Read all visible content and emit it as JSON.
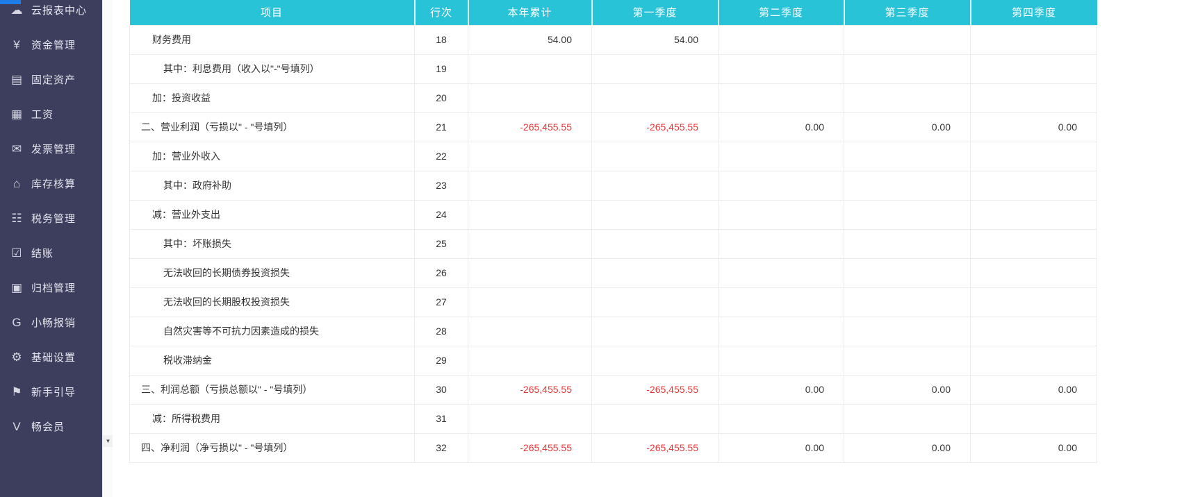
{
  "colors": {
    "sidebar-bg": "#3d3e5d",
    "sidebar-text": "#e3e4ee",
    "header-bg": "#29c3d8",
    "negative": "#e63838",
    "accent-blue": "#1e7ce8"
  },
  "sidebar": {
    "scroll_down_arrow": "▼",
    "items": [
      {
        "name": "cloud-report-center",
        "icon": "cloud-report-icon",
        "glyph": "☁",
        "label": "云报表中心"
      },
      {
        "name": "funds-management",
        "icon": "funds-icon",
        "glyph": "¥",
        "label": "资金管理"
      },
      {
        "name": "fixed-assets",
        "icon": "fixed-assets-icon",
        "glyph": "▤",
        "label": "固定资产"
      },
      {
        "name": "payroll",
        "icon": "payroll-icon",
        "glyph": "▦",
        "label": "工资"
      },
      {
        "name": "invoice-management",
        "icon": "invoice-icon",
        "glyph": "✉",
        "label": "发票管理"
      },
      {
        "name": "inventory-accounting",
        "icon": "inventory-icon",
        "glyph": "⌂",
        "label": "库存核算"
      },
      {
        "name": "tax-management",
        "icon": "tax-icon",
        "glyph": "☷",
        "label": "税务管理"
      },
      {
        "name": "closing",
        "icon": "closing-icon",
        "glyph": "☑",
        "label": "结账"
      },
      {
        "name": "archive-management",
        "icon": "archive-icon",
        "glyph": "▣",
        "label": "归档管理"
      },
      {
        "name": "reimbursement",
        "icon": "reimburse-icon",
        "glyph": "G",
        "label": "小畅报销"
      },
      {
        "name": "basic-settings",
        "icon": "settings-icon",
        "glyph": "⚙",
        "label": "基础设置"
      },
      {
        "name": "newbie-guide",
        "icon": "guide-icon",
        "glyph": "⚑",
        "label": "新手引导"
      },
      {
        "name": "member",
        "icon": "member-icon",
        "glyph": "V",
        "label": "畅会员"
      }
    ]
  },
  "table": {
    "headers": [
      "项目",
      "行次",
      "本年累计",
      "第一季度",
      "第二季度",
      "第三季度",
      "第四季度"
    ],
    "rows": [
      {
        "item": "财务费用",
        "indent": 1,
        "line": "18",
        "ytd": "54.00",
        "q1": "54.00",
        "q2": "",
        "q3": "",
        "q4": ""
      },
      {
        "item": "其中：利息费用（收入以\"-\"号填列）",
        "indent": 2,
        "line": "19",
        "ytd": "",
        "q1": "",
        "q2": "",
        "q3": "",
        "q4": ""
      },
      {
        "item": "加：投资收益",
        "indent": 1,
        "line": "20",
        "ytd": "",
        "q1": "",
        "q2": "",
        "q3": "",
        "q4": ""
      },
      {
        "item": "二、营业利润（亏损以\" - \"号填列）",
        "indent": 0,
        "line": "21",
        "ytd": "-265,455.55",
        "q1": "-265,455.55",
        "q2": "0.00",
        "q3": "0.00",
        "q4": "0.00"
      },
      {
        "item": "加：营业外收入",
        "indent": 1,
        "line": "22",
        "ytd": "",
        "q1": "",
        "q2": "",
        "q3": "",
        "q4": ""
      },
      {
        "item": "其中：政府补助",
        "indent": 2,
        "line": "23",
        "ytd": "",
        "q1": "",
        "q2": "",
        "q3": "",
        "q4": ""
      },
      {
        "item": "减：营业外支出",
        "indent": 1,
        "line": "24",
        "ytd": "",
        "q1": "",
        "q2": "",
        "q3": "",
        "q4": ""
      },
      {
        "item": "其中：坏账损失",
        "indent": 2,
        "line": "25",
        "ytd": "",
        "q1": "",
        "q2": "",
        "q3": "",
        "q4": ""
      },
      {
        "item": "无法收回的长期债券投资损失",
        "indent": 2,
        "line": "26",
        "ytd": "",
        "q1": "",
        "q2": "",
        "q3": "",
        "q4": ""
      },
      {
        "item": "无法收回的长期股权投资损失",
        "indent": 2,
        "line": "27",
        "ytd": "",
        "q1": "",
        "q2": "",
        "q3": "",
        "q4": ""
      },
      {
        "item": "自然灾害等不可抗力因素造成的损失",
        "indent": 2,
        "line": "28",
        "ytd": "",
        "q1": "",
        "q2": "",
        "q3": "",
        "q4": ""
      },
      {
        "item": "税收滞纳金",
        "indent": 2,
        "line": "29",
        "ytd": "",
        "q1": "",
        "q2": "",
        "q3": "",
        "q4": ""
      },
      {
        "item": "三、利润总额（亏损总额以\" - \"号填列）",
        "indent": 0,
        "line": "30",
        "ytd": "-265,455.55",
        "q1": "-265,455.55",
        "q2": "0.00",
        "q3": "0.00",
        "q4": "0.00"
      },
      {
        "item": "减：所得税费用",
        "indent": 1,
        "line": "31",
        "ytd": "",
        "q1": "",
        "q2": "",
        "q3": "",
        "q4": ""
      },
      {
        "item": "四、净利润（净亏损以\" - \"号填列）",
        "indent": 0,
        "line": "32",
        "ytd": "-265,455.55",
        "q1": "-265,455.55",
        "q2": "0.00",
        "q3": "0.00",
        "q4": "0.00"
      }
    ]
  }
}
